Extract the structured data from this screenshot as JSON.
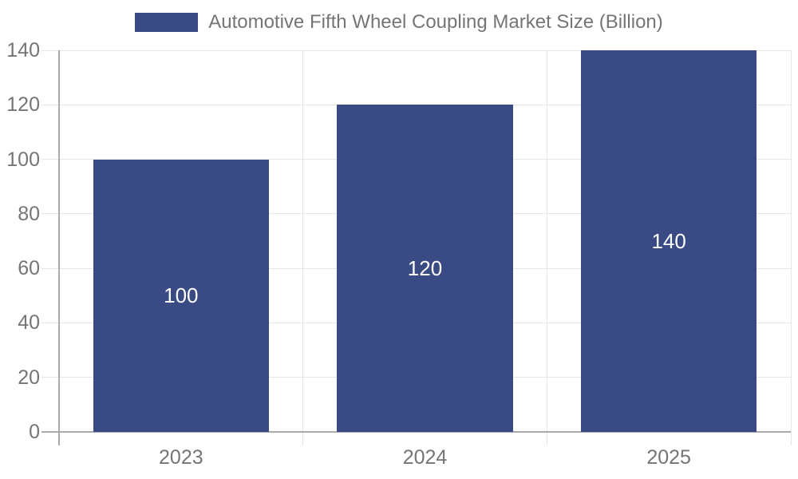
{
  "chart_data": {
    "type": "bar",
    "title": "Automotive Fifth Wheel Coupling Market Size (Billion)",
    "categories": [
      "2023",
      "2024",
      "2025"
    ],
    "series": [
      {
        "name": "Automotive Fifth Wheel Coupling Market Size (Billion)",
        "values": [
          100,
          120,
          140
        ]
      }
    ],
    "value_labels": [
      "100",
      "120",
      "140"
    ],
    "xlabel": "",
    "ylabel": "",
    "ylim": [
      0,
      140
    ],
    "yticks": [
      0,
      20,
      40,
      60,
      80,
      100,
      120,
      140
    ],
    "grid": true,
    "legend_position": "top"
  },
  "palette": {
    "bar": "#3a4a84",
    "value_label": "#ffffff",
    "tick_label": "#757575",
    "title_text": "#757575",
    "axis": "#aaaaaa",
    "gridline": "#e6e6e6",
    "background": "#ffffff"
  }
}
